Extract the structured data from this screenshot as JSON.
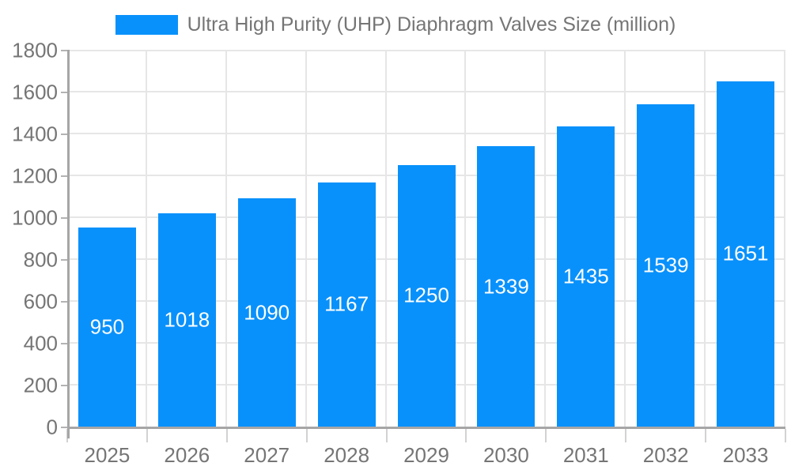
{
  "chart_data": {
    "type": "bar",
    "legend": "Ultra High Purity (UHP) Diaphragm Valves Size (million)",
    "legend_position": "top-center",
    "categories": [
      "2025",
      "2026",
      "2027",
      "2028",
      "2029",
      "2030",
      "2031",
      "2032",
      "2033"
    ],
    "values": [
      950,
      1018,
      1090,
      1167,
      1250,
      1339,
      1435,
      1539,
      1651
    ],
    "value_labels": [
      "950",
      "1018",
      "1090",
      "1167",
      "1250",
      "1339",
      "1435",
      "1539",
      "1651"
    ],
    "yticks": [
      "0",
      "200",
      "400",
      "600",
      "800",
      "1000",
      "1200",
      "1400",
      "1600",
      "1800"
    ],
    "ylim": [
      0,
      1800
    ],
    "xlabel": "",
    "ylabel": "",
    "grid": true,
    "colors": {
      "bar": "#0991fb",
      "value_label": "#ffffff",
      "axis_text": "#757575",
      "gridline": "#e6e6e6",
      "axis_line": "#a6a6a6"
    }
  }
}
